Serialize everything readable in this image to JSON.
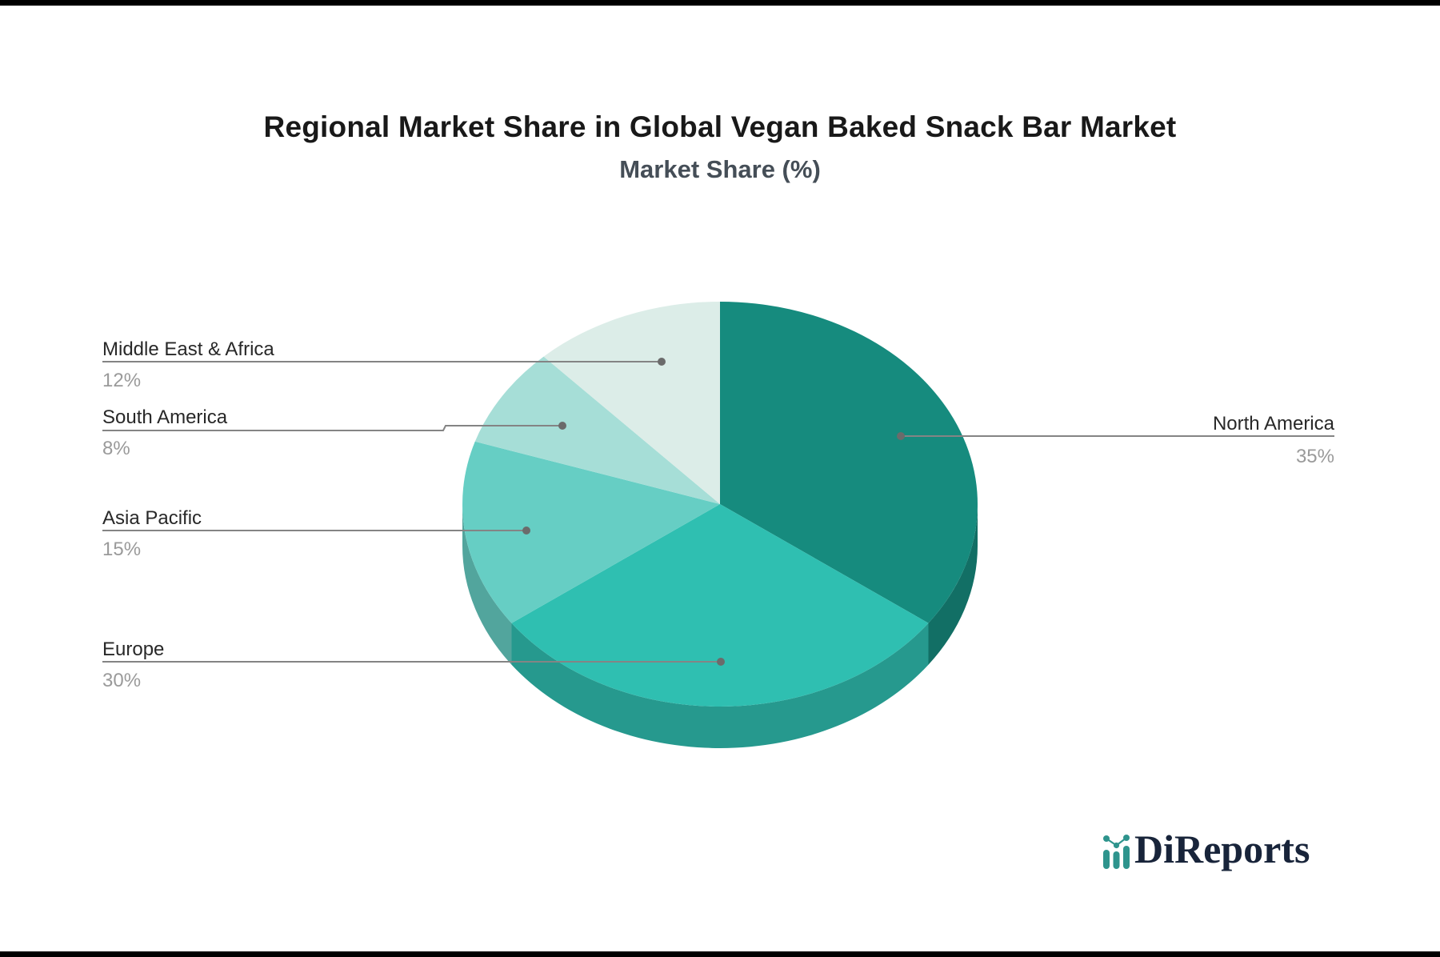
{
  "chart_data": {
    "type": "pie",
    "is_3d": true,
    "title": "Regional Market Share in Global Vegan Baked Snack Bar Market",
    "subtitle": "Market Share (%)",
    "unit": "%",
    "start_position": "top",
    "direction": "clockwise",
    "legend": "none (leader-line labels)",
    "slices": [
      {
        "label": "North America",
        "value": 35,
        "display": "35%",
        "color": "#168B7E"
      },
      {
        "label": "Europe",
        "value": 30,
        "display": "30%",
        "color": "#2FBFB1"
      },
      {
        "label": "Asia Pacific",
        "value": 15,
        "display": "15%",
        "color": "#66CEC4"
      },
      {
        "label": "South America",
        "value": 8,
        "display": "8%",
        "color": "#A6DED7"
      },
      {
        "label": "Middle East & Africa",
        "value": 12,
        "display": "12%",
        "color": "#DCEDE8"
      }
    ],
    "label_text_color": "#282828",
    "value_text_color": "#9A9A9A",
    "leader_line_color": "#848484"
  },
  "logo": {
    "text": "DiReports",
    "icon": "bar-line-chart-icon",
    "accent_color": "#2E948D",
    "text_color": "#18243A"
  }
}
